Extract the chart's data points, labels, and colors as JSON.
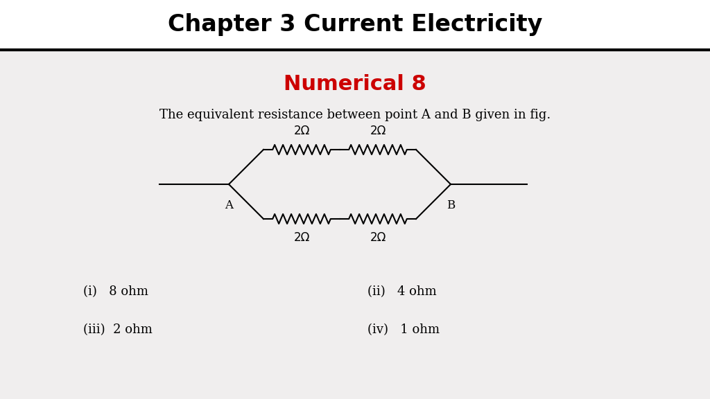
{
  "title": "Chapter 3 Current Electricity",
  "subtitle": "Numerical 8",
  "subtitle_color": "#cc0000",
  "problem_text": "The equivalent resistance between point A and B given in fig.",
  "title_bg": "#ffffff",
  "body_bg": "#f0eeee",
  "options": [
    {
      "label": "(i)",
      "value": "8 ohm"
    },
    {
      "label": "(ii)",
      "value": "4 ohm"
    },
    {
      "label": "(iii)",
      "value": "2 ohm"
    },
    {
      "label": "(iv)",
      "value": "1 ohm"
    }
  ],
  "resistor_labels": [
    "2Ω",
    "2Ω",
    "2Ω",
    "2Ω"
  ],
  "node_labels": [
    "A",
    "B"
  ],
  "title_fontsize": 24,
  "subtitle_fontsize": 22,
  "body_fontsize": 13,
  "option_fontsize": 13,
  "resistor_label_fontsize": 12
}
